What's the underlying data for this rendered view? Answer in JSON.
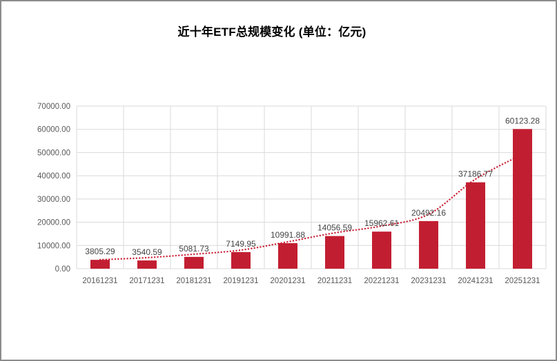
{
  "title": {
    "main": "近十年ETF总规模变化",
    "unit": " (单位：亿元)"
  },
  "chart_data": {
    "type": "bar",
    "title": "近十年ETF总规模变化 (单位：亿元)",
    "categories": [
      "20161231",
      "20171231",
      "20181231",
      "20191231",
      "20201231",
      "20211231",
      "20221231",
      "20231231",
      "20241231",
      "20251231"
    ],
    "values": [
      3805.29,
      3540.59,
      5081.73,
      7149.95,
      10991.88,
      14056.59,
      15962.61,
      20492.16,
      37186.77,
      60123.28
    ],
    "data_labels": [
      "3805.29",
      "3540.59",
      "5081.73",
      "7149.95",
      "10991.88",
      "14056.59",
      "15962.61",
      "20492.16",
      "37186.77",
      "60123.28"
    ],
    "y_ticks": [
      "0.00",
      "10000.00",
      "20000.00",
      "30000.00",
      "40000.00",
      "50000.00",
      "60000.00",
      "70000.00"
    ],
    "ylim": [
      0,
      70000
    ],
    "xlabel": "",
    "ylabel": "",
    "grid": "both",
    "legend": "none",
    "trendline": {
      "style": "dotted",
      "values": [
        3856,
        4750,
        6230,
        8010,
        11570,
        15420,
        18390,
        23430,
        38560,
        49240
      ]
    },
    "colors": {
      "bar": "#c21e31",
      "trend": "#cb2438",
      "grid": "#d9d9d9",
      "tick_text": "#595959",
      "data_label_text": "#444444",
      "title_text": "#000000",
      "frame_border": "#8c8c8c",
      "background": "#ffffff"
    }
  }
}
